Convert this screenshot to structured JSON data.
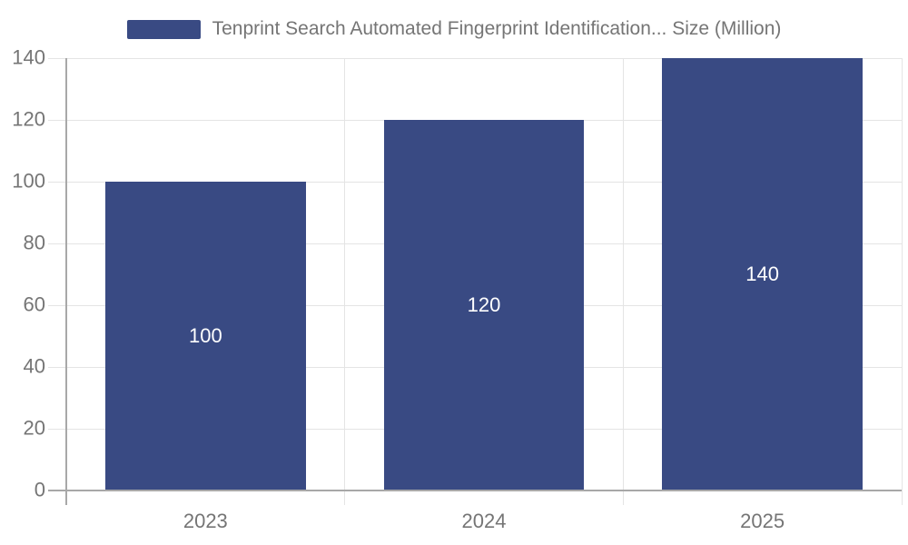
{
  "legend": {
    "label": "Tenprint Search Automated Fingerprint Identification... Size (Million)"
  },
  "colors": {
    "bar": "#394a83",
    "axis_text": "#757575",
    "legend_text": "#757575",
    "gridline": "#e4e4e4",
    "axis_line": "#a8a8a8",
    "bar_label_text": "#ffffff",
    "background": "#ffffff"
  },
  "chart_data": {
    "type": "bar",
    "title": "",
    "categories": [
      "2023",
      "2024",
      "2025"
    ],
    "series": [
      {
        "name": "Tenprint Search Automated Fingerprint Identification... Size (Million)",
        "values": [
          100,
          120,
          140
        ]
      }
    ],
    "bar_value_labels": [
      "100",
      "120",
      "140"
    ],
    "yticks": [
      0,
      20,
      40,
      60,
      80,
      100,
      120,
      140
    ],
    "ytick_labels": [
      "0",
      "20",
      "40",
      "60",
      "80",
      "100",
      "120",
      "140"
    ],
    "xlabel": "",
    "ylabel": "",
    "ylim": [
      0,
      140
    ],
    "grid": true,
    "legend_position": "top",
    "bar_label_position": "middle"
  }
}
